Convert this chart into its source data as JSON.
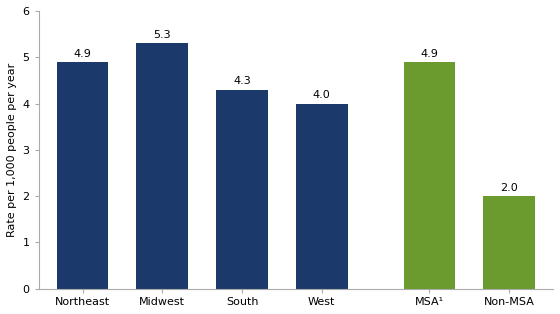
{
  "categories": [
    "Northeast",
    "Midwest",
    "South",
    "West",
    "MSA¹",
    "Non-MSA"
  ],
  "values": [
    4.9,
    5.3,
    4.3,
    4.0,
    4.9,
    2.0
  ],
  "bar_colors": [
    "#1b3a6b",
    "#1b3a6b",
    "#1b3a6b",
    "#1b3a6b",
    "#6b9a2e",
    "#6b9a2e"
  ],
  "ylabel": "Rate per 1,000 people per year",
  "ylim": [
    0,
    6
  ],
  "yticks": [
    0,
    1,
    2,
    3,
    4,
    5,
    6
  ],
  "label_fontsize": 8,
  "value_fontsize": 8,
  "tick_fontsize": 8,
  "bar_width": 0.65,
  "background_color": "#ffffff",
  "x_positions": [
    0,
    1,
    2,
    3,
    4.35,
    5.35
  ],
  "xlim": [
    -0.55,
    5.9
  ]
}
